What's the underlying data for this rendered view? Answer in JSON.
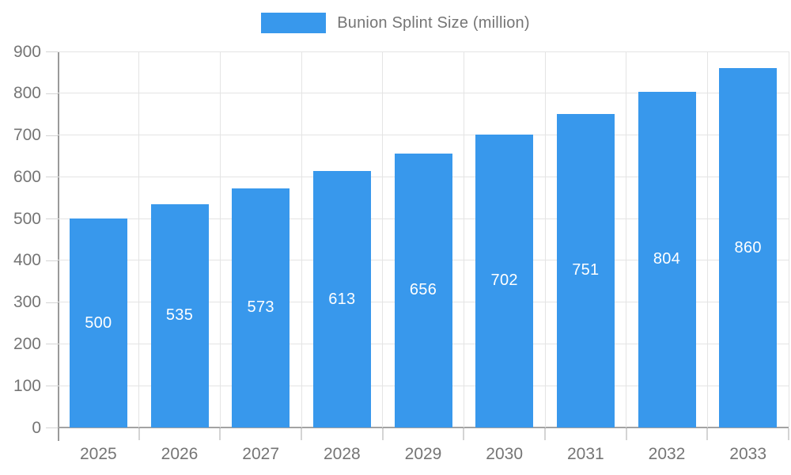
{
  "legend": {
    "label": "Bunion Splint Size (million)"
  },
  "colors": {
    "bar": "#3898EC",
    "axis_text": "#757575",
    "value_label": "#FFFFFF",
    "gridline": "#E4E4E4",
    "axis_line": "#9A9A9A",
    "tick": "#D4D4D4",
    "background": "#FFFFFF"
  },
  "chart_data": {
    "type": "bar",
    "title": "",
    "xlabel": "",
    "ylabel": "",
    "categories": [
      "2025",
      "2026",
      "2027",
      "2028",
      "2029",
      "2030",
      "2031",
      "2032",
      "2033"
    ],
    "series": [
      {
        "name": "Bunion Splint Size (million)",
        "values": [
          500,
          535,
          573,
          613,
          656,
          702,
          751,
          804,
          860
        ]
      }
    ],
    "data_labels_shown": true,
    "data_label_position": "inside-center",
    "ylim": [
      0,
      900
    ],
    "y_ticks": [
      0,
      100,
      200,
      300,
      400,
      500,
      600,
      700,
      800,
      900
    ],
    "grid": true,
    "legend_position": "top-center"
  }
}
